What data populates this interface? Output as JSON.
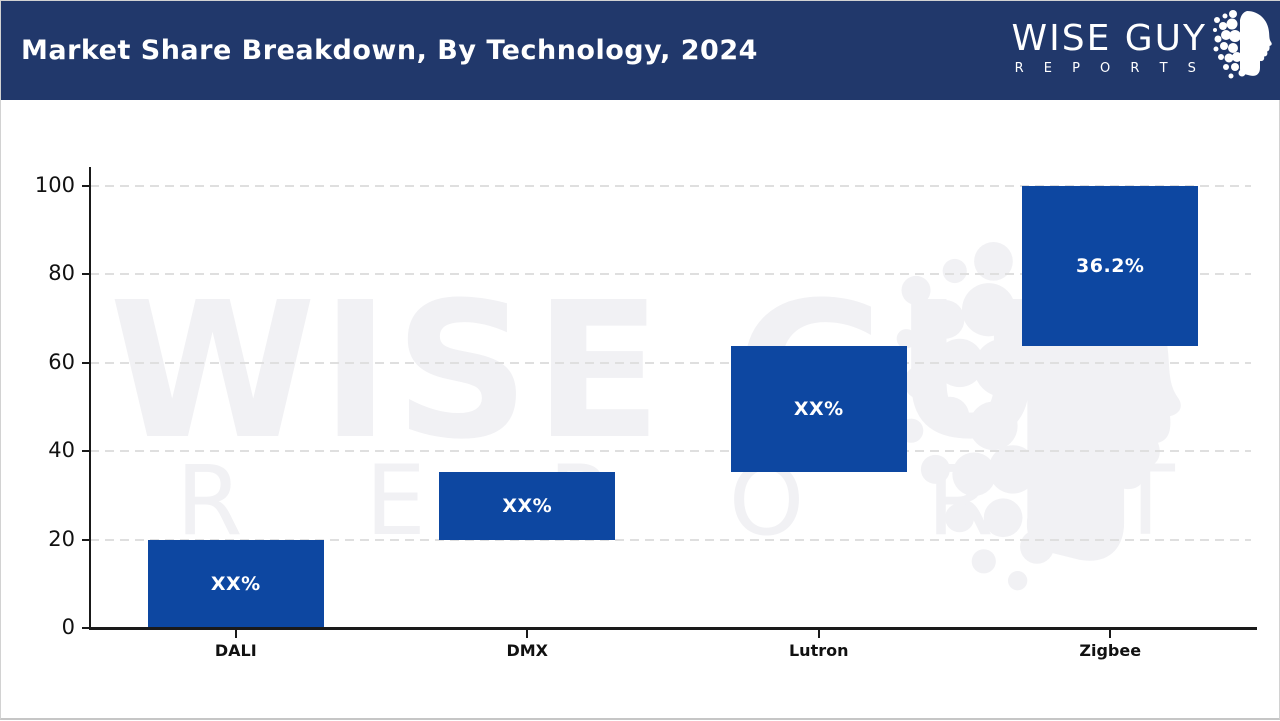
{
  "page": {
    "accent_navy": "#21386B",
    "bar_blue": "#0D47A1",
    "grid_color": "#DFDFDF",
    "watermark_color": "#F1F1F4"
  },
  "header": {
    "title": "Market Share Breakdown, By Technology, 2024",
    "logo_line1": "WISE GUY",
    "logo_line2": "R E P O R T S"
  },
  "watermark": {
    "line1": "WISE GUY",
    "line2": "R E P O R T S"
  },
  "chart_data": {
    "type": "bar",
    "variant": "waterfall-floating-bars",
    "title": "Market Share Breakdown, By Technology, 2024",
    "categories": [
      "DALI",
      "DMX",
      "Lutron",
      "Zigbee"
    ],
    "segments": [
      {
        "category": "DALI",
        "start": 0,
        "end": 20,
        "label": "XX%"
      },
      {
        "category": "DMX",
        "start": 20,
        "end": 35.4,
        "label": "XX%"
      },
      {
        "category": "Lutron",
        "start": 35.4,
        "end": 63.8,
        "label": "XX%"
      },
      {
        "category": "Zigbee",
        "start": 63.8,
        "end": 100,
        "label": "36.2%"
      }
    ],
    "xlabel": "",
    "ylabel": "",
    "ylim": [
      0,
      100
    ],
    "yticks": [
      0,
      20,
      40,
      60,
      80,
      100
    ],
    "grid": "horizontal-dashed",
    "legend": "none",
    "bar_color": "#0D47A1",
    "bar_label_color": "#FFFFFF"
  }
}
